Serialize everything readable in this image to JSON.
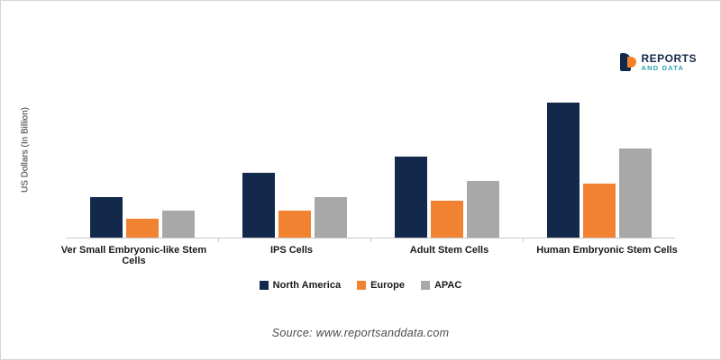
{
  "logo": {
    "line1": "REPORTS",
    "line2": "AND DATA"
  },
  "chart_data": {
    "type": "bar",
    "title": "",
    "categories": [
      "Ver Small Embryonic-like Stem Cells",
      "IPS Cells",
      "Adult Stem Cells",
      "Human Embryonic Stem Cells"
    ],
    "series": [
      {
        "name": "North America",
        "color": "#13294b",
        "values": [
          1.5,
          2.4,
          3.0,
          5.0
        ]
      },
      {
        "name": "Europe",
        "color": "#f08232",
        "values": [
          0.7,
          1.0,
          1.35,
          2.0
        ]
      },
      {
        "name": "APAC",
        "color": "#a8a8a8",
        "values": [
          1.0,
          1.5,
          2.1,
          3.3
        ]
      }
    ],
    "xlabel": "",
    "ylabel": "US Dollars  (In Billion)",
    "ylim": [
      0,
      6
    ],
    "grid": false,
    "legend_position": "bottom"
  },
  "source": "Source: www.reportsanddata.com"
}
